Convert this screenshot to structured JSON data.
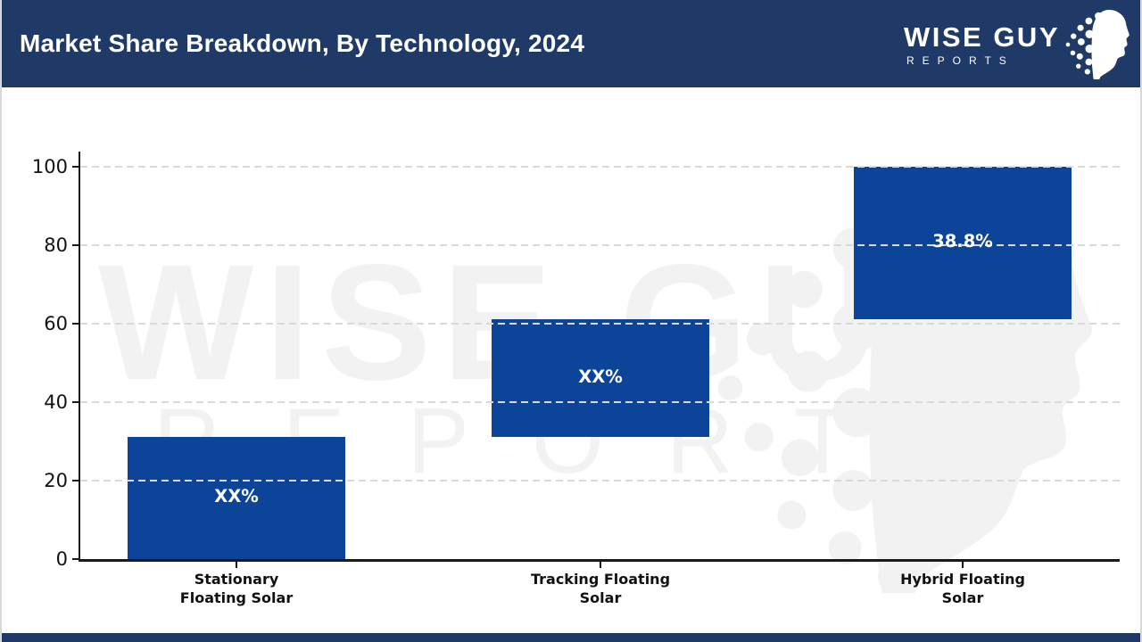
{
  "header": {
    "title": "Market Share Breakdown, By Technology, 2024",
    "bg_color": "#203a67",
    "logo": {
      "wordmark": "WISE GUY",
      "sub": "REPORTS"
    }
  },
  "watermark": {
    "wordmark": "WISE GUY",
    "sub": "REPORTS",
    "color": "#f2f2f2"
  },
  "chart_data": {
    "type": "bar",
    "subtype": "floating-waterfall",
    "title": "Market Share Breakdown, By Technology, 2024",
    "categories": [
      [
        "Stationary",
        "Floating Solar"
      ],
      [
        "Tracking Floating",
        "Solar"
      ],
      [
        "Hybrid Floating",
        "Solar"
      ]
    ],
    "bars": [
      {
        "category": "Stationary Floating Solar",
        "start": 0,
        "end": 31.2,
        "label": "XX%"
      },
      {
        "category": "Tracking Floating Solar",
        "start": 31.2,
        "end": 61.2,
        "label": "XX%"
      },
      {
        "category": "Hybrid Floating Solar",
        "start": 61.2,
        "end": 100,
        "label": "38.8%",
        "value": 38.8
      }
    ],
    "ylim": [
      0,
      100
    ],
    "yticks": [
      0,
      20,
      40,
      60,
      80,
      100
    ],
    "grid": "horizontal-dashed-over-bars",
    "legend": "none",
    "bar_color": "#0b4499",
    "bar_label_color": "#ffffff",
    "axis_color": "#1a1a1a",
    "grid_color": "#d9d9d9"
  },
  "footer": {
    "bg_color": "#203a67"
  }
}
